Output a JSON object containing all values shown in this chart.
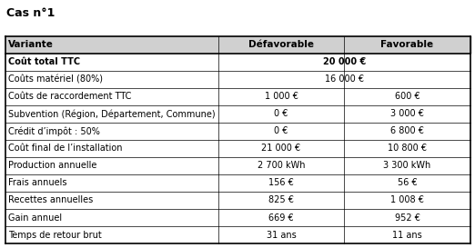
{
  "title": "Cas n°1",
  "col_labels": [
    "Variante",
    "Défavorable",
    "Favorable"
  ],
  "rows": [
    {
      "label": "Coût total TTC",
      "def": "20 000 €",
      "fav": "",
      "bold": true,
      "span": true
    },
    {
      "label": "Coûts matériel (80%)",
      "def": "16 000 €",
      "fav": "",
      "bold": false,
      "span": true
    },
    {
      "label": "Coûts de raccordement TTC",
      "def": "1 000 €",
      "fav": "600 €",
      "bold": false,
      "span": false
    },
    {
      "label": "Subvention (Région, Département, Commune)",
      "def": "0 €",
      "fav": "3 000 €",
      "bold": false,
      "span": false
    },
    {
      "label": "Crédit d’impôt : 50%",
      "def": "0 €",
      "fav": "6 800 €",
      "bold": false,
      "span": false
    },
    {
      "label": "Coût final de l’installation",
      "def": "21 000 €",
      "fav": "10 800 €",
      "bold": false,
      "span": false
    },
    {
      "label": "Production annuelle",
      "def": "2 700 kWh",
      "fav": "3 300 kWh",
      "bold": false,
      "span": false
    },
    {
      "label": "Frais annuels",
      "def": "156 €",
      "fav": "56 €",
      "bold": false,
      "span": false
    },
    {
      "label": "Recettes annuelles",
      "def": "825 €",
      "fav": "1 008 €",
      "bold": false,
      "span": false
    },
    {
      "label": "Gain annuel",
      "def": "669 €",
      "fav": "952 €",
      "bold": false,
      "span": false
    },
    {
      "label": "Temps de retour brut",
      "def": "31 ans",
      "fav": "11 ans",
      "bold": false,
      "span": false
    }
  ],
  "header_bg": "#d0d0d0",
  "row_bg": "#ffffff",
  "title_fontsize": 9,
  "header_fontsize": 7.5,
  "cell_fontsize": 7.0,
  "lw_thick": 1.2,
  "lw_thin": 0.5
}
